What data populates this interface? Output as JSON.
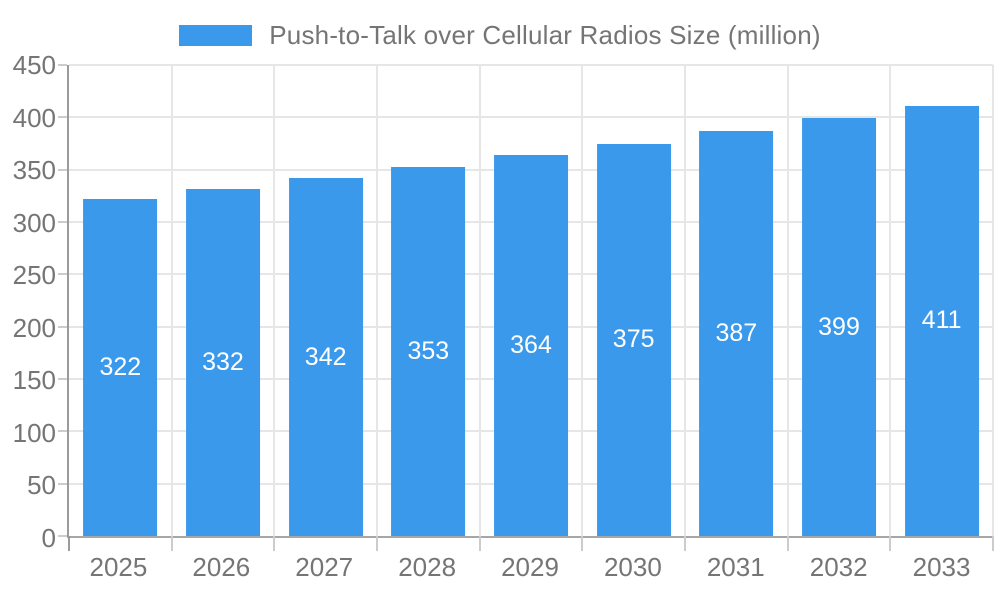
{
  "legend": {
    "label": "Push-to-Talk over Cellular Radios Size (million)"
  },
  "colors": {
    "bar": "#3B99EC",
    "bar_label": "#FFFFFF",
    "axis_label": "#757575",
    "legend_text": "#757575",
    "grid_line": "#E6E6E6",
    "axis_line": "#A6A6A6",
    "tick": "#CCCCCC",
    "background": "#FFFFFF"
  },
  "chart_data": {
    "type": "bar",
    "title": "Push-to-Talk over Cellular Radios Size (million)",
    "categories": [
      "2025",
      "2026",
      "2027",
      "2028",
      "2029",
      "2030",
      "2031",
      "2032",
      "2033"
    ],
    "series": [
      {
        "name": "Push-to-Talk over Cellular Radios Size (million)",
        "color": "#3B99EC",
        "values": [
          322,
          332,
          342,
          353,
          364,
          375,
          387,
          399,
          411
        ]
      }
    ],
    "xlabel": "",
    "ylabel": "",
    "ylim": [
      0,
      450
    ],
    "yticks": [
      0,
      50,
      100,
      150,
      200,
      250,
      300,
      350,
      400,
      450
    ],
    "grid": true,
    "legend_position": "top",
    "bar_labels_visible": true,
    "bar_label_position": "inside-center"
  }
}
